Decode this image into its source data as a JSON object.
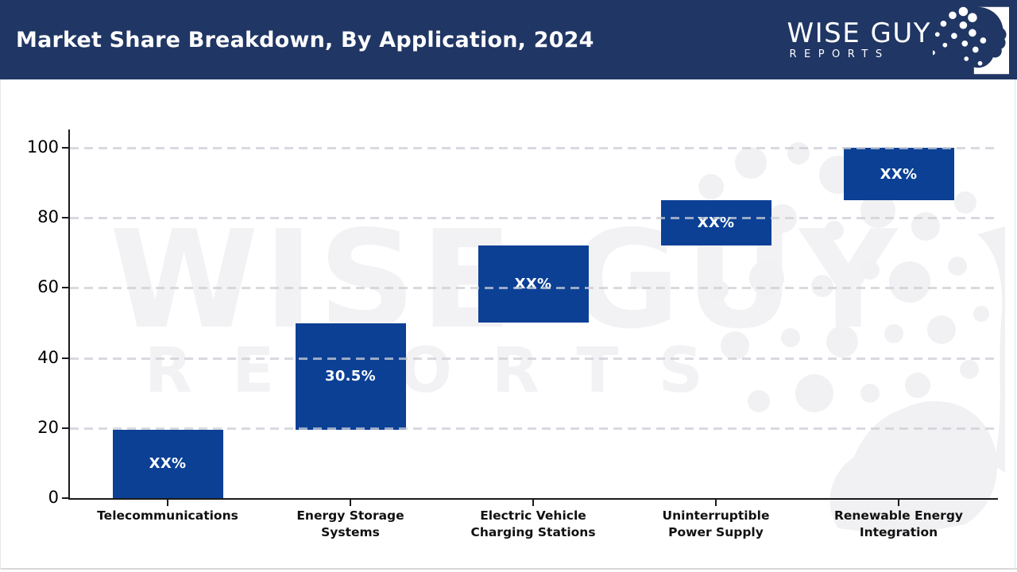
{
  "header": {
    "title": "Market Share Breakdown, By Application, 2024",
    "background_color": "#203664"
  },
  "logo": {
    "line1": "WISE GUY",
    "line2": "REPORTS"
  },
  "watermark": {
    "line1": "WISE GUY",
    "line2": "REPORTS"
  },
  "chart_data": {
    "type": "bar",
    "subtype": "floating-waterfall",
    "title": "Market Share Breakdown, By Application, 2024",
    "xlabel": "",
    "ylabel": "",
    "ylim": [
      0,
      100
    ],
    "yticks": [
      0,
      20,
      40,
      60,
      80,
      100
    ],
    "grid": "dashed-horizontal",
    "legend": "none",
    "categories": [
      "Telecommunications",
      "Energy Storage Systems",
      "Electric Vehicle Charging Stations",
      "Uninterruptible Power Supply",
      "Renewable Energy Integration"
    ],
    "category_lines": [
      [
        "Telecommunications"
      ],
      [
        "Energy Storage",
        "Systems"
      ],
      [
        "Electric Vehicle",
        "Charging Stations"
      ],
      [
        "Uninterruptible",
        "Power Supply"
      ],
      [
        "Renewable Energy",
        "Integration"
      ]
    ],
    "series": [
      {
        "name": "Market Share",
        "ranges": [
          [
            0,
            19.5
          ],
          [
            19.5,
            50
          ],
          [
            50,
            72
          ],
          [
            72,
            85
          ],
          [
            85,
            100
          ]
        ],
        "spans": [
          19.5,
          30.5,
          22,
          13,
          15
        ],
        "bar_labels": [
          "XX%",
          "30.5%",
          "XX%",
          "XX%",
          "XX%"
        ]
      }
    ],
    "colors": {
      "bar": "#0b4095",
      "bar_label": "#ffffff",
      "grid": "rgba(203,206,213,0.75)",
      "axis": "#1a1a1a",
      "tick_label": "#000000"
    }
  }
}
